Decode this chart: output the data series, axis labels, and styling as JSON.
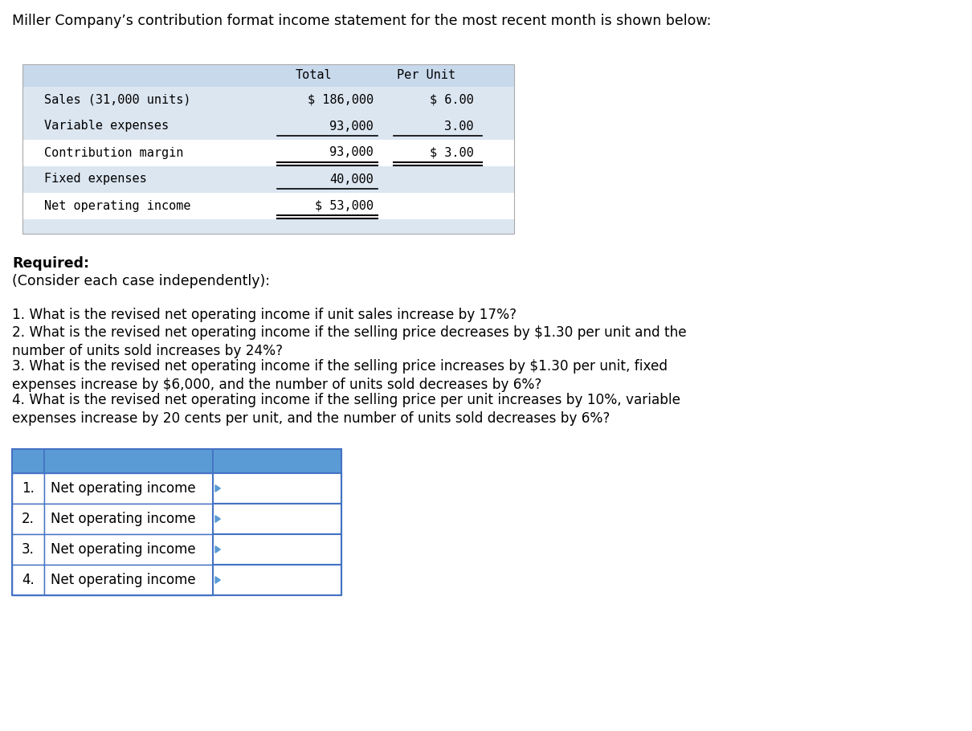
{
  "title": "Miller Company’s contribution format income statement for the most recent month is shown below:",
  "income_statement": {
    "rows": [
      {
        "label": "Sales (31,000 units)",
        "total": "$ 186,000",
        "per_unit": "$ 6.00",
        "bg": "light",
        "line_below_total": false,
        "line_below_perunit": false,
        "double_below_total": false,
        "double_below_perunit": false
      },
      {
        "label": "Variable expenses",
        "total": "93,000",
        "per_unit": "3.00",
        "bg": "light",
        "line_below_total": true,
        "line_below_perunit": true,
        "double_below_total": false,
        "double_below_perunit": false
      },
      {
        "label": "Contribution margin",
        "total": "93,000",
        "per_unit": "$ 3.00",
        "bg": "white",
        "line_below_total": false,
        "line_below_perunit": false,
        "double_below_total": true,
        "double_below_perunit": true
      },
      {
        "label": "Fixed expenses",
        "total": "40,000",
        "per_unit": "",
        "bg": "light",
        "line_below_total": true,
        "line_below_perunit": false,
        "double_below_total": false,
        "double_below_perunit": false
      },
      {
        "label": "Net operating income",
        "total": "$ 53,000",
        "per_unit": "",
        "bg": "white",
        "line_below_total": false,
        "line_below_perunit": false,
        "double_below_total": true,
        "double_below_perunit": false
      }
    ]
  },
  "required_text": "Required:",
  "consider_text": "(Consider each case independently):",
  "questions": [
    "1. What is the revised net operating income if unit sales increase by 17%?",
    "2. What is the revised net operating income if the selling price decreases by $1.30 per unit and the\nnumber of units sold increases by 24%?",
    "3. What is the revised net operating income if the selling price increases by $1.30 per unit, fixed\nexpenses increase by $6,000, and the number of units sold decreases by 6%?",
    "4. What is the revised net operating income if the selling price per unit increases by 10%, variable\nexpenses increase by 20 cents per unit, and the number of units sold decreases by 6%?"
  ],
  "answer_rows": [
    {
      "num": "1.",
      "label": "Net operating income"
    },
    {
      "num": "2.",
      "label": "Net operating income"
    },
    {
      "num": "3.",
      "label": "Net operating income"
    },
    {
      "num": "4.",
      "label": "Net operating income"
    }
  ],
  "bg_color": "#ffffff",
  "header_bg": "#c9d9ec",
  "light_bg": "#dce6f1",
  "white_bg": "#ffffff",
  "ans_header_bg": "#5b9bd5",
  "ans_cell_bg": "#ffffff",
  "ans_border": "#4472c4",
  "mono_font": "DejaVu Sans Mono",
  "sans_font": "DejaVu Sans"
}
